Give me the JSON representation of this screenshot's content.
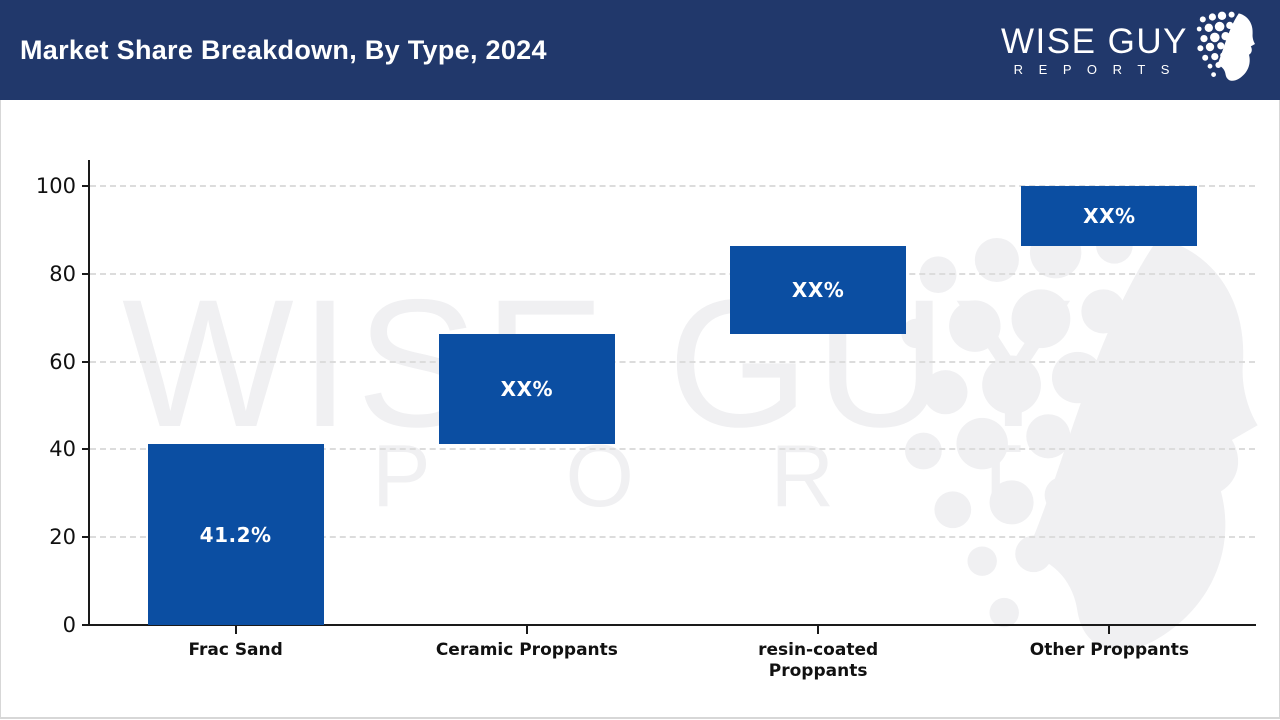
{
  "header": {
    "title": "Market Share Breakdown, By Type, 2024",
    "logo": {
      "line1": "WISE GUY",
      "line2": "R E P O R T S"
    }
  },
  "watermark": {
    "line1": "WISE GUY",
    "line2": "P O R T S"
  },
  "colors": {
    "header_bg": "#21386b",
    "bar": "#0b4ea2",
    "bar_label": "#ffffff",
    "axis": "#1a1a1a",
    "gridline": "#dcdcdc",
    "watermark": "#f0f0f2"
  },
  "chart_data": {
    "type": "bar",
    "subtype": "waterfall",
    "title": "Market Share Breakdown, By Type, 2024",
    "xlabel": "",
    "ylabel": "",
    "ylim": [
      0,
      100
    ],
    "yticks": [
      0,
      20,
      40,
      60,
      80,
      100
    ],
    "grid": "horizontal-dashed",
    "legend": "none",
    "categories": [
      "Frac Sand",
      "Ceramic Proppants",
      "resin-coated Proppants",
      "Other Proppants"
    ],
    "segments": [
      {
        "category": "Frac Sand",
        "start": 0,
        "end": 41.2,
        "label": "41.2%"
      },
      {
        "category": "Ceramic Proppants",
        "start": 41.2,
        "end": 66.3,
        "label": "XX%"
      },
      {
        "category": "resin-coated Proppants",
        "start": 66.3,
        "end": 86.4,
        "label": "XX%"
      },
      {
        "category": "Other Proppants",
        "start": 86.4,
        "end": 100,
        "label": "XX%"
      }
    ]
  }
}
